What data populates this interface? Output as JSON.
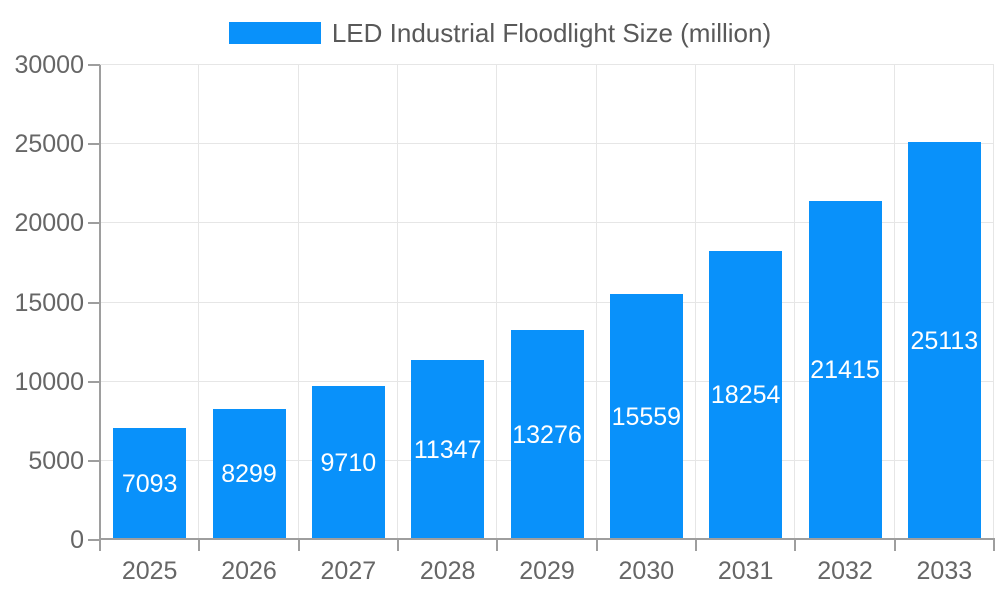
{
  "chart_data": {
    "type": "bar",
    "title": "LED Industrial Floodlight Size (million)",
    "legend_entries": [
      "LED Industrial Floodlight Size (million)"
    ],
    "legend_position": "top-center",
    "categories": [
      "2025",
      "2026",
      "2027",
      "2028",
      "2029",
      "2030",
      "2031",
      "2032",
      "2033"
    ],
    "values": [
      7093,
      8299,
      9710,
      11347,
      13276,
      15559,
      18254,
      21415,
      25113
    ],
    "data_labels": [
      "7093",
      "8299",
      "9710",
      "11347",
      "13276",
      "15559",
      "18254",
      "21415",
      "25113"
    ],
    "data_label_placement": "inside-center",
    "xlabel": "",
    "ylabel": "",
    "ylim": [
      0,
      30000
    ],
    "yticks": [
      "0",
      "5000",
      "10000",
      "15000",
      "20000",
      "25000",
      "30000"
    ],
    "grid": true,
    "colors": {
      "bar": "#0991fa",
      "data_label": "#ffffff",
      "grid_line": "#e6e6e6",
      "axis_line": "#9e9e9e",
      "tick_label": "#666666",
      "legend_text": "#595959",
      "background": "#ffffff"
    }
  }
}
